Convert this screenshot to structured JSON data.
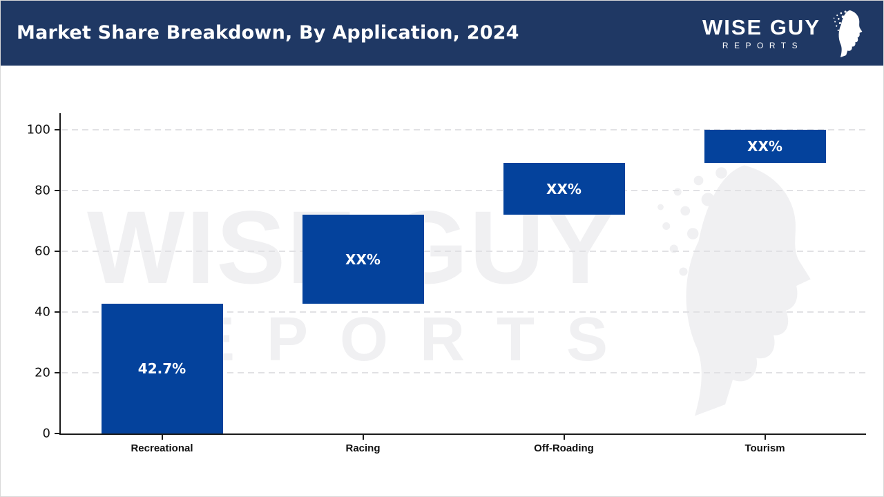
{
  "header": {
    "title": "Market Share Breakdown, By Application, 2024",
    "brand": {
      "name": "WISE GUY",
      "subtitle": "REPORTS"
    }
  },
  "watermark": {
    "line1": "WISE GUY",
    "line2": "REPORTS"
  },
  "colors": {
    "header_bg": "#1f3864",
    "title": "#ffffff",
    "page_bg": "#ffffff",
    "border": "#d9d9d9",
    "bar": "#04429c",
    "bar_label": "#ffffff",
    "grid": "#e1e1e4",
    "axis": "#1a1a1a",
    "tick_label": "#111111",
    "watermark": "#f0f0f2"
  },
  "chart_data": {
    "type": "bar",
    "variant": "waterfall",
    "title": "Market Share Breakdown, By Application, 2024",
    "categories": [
      "Recreational",
      "Racing",
      "Off-Roading",
      "Tourism"
    ],
    "segments": [
      {
        "category": "Recreational",
        "start": 0,
        "end": 42.7,
        "value": 42.7,
        "label": "42.7%"
      },
      {
        "category": "Racing",
        "start": 42.7,
        "end": 72,
        "value": 29.3,
        "label": "XX%"
      },
      {
        "category": "Off-Roading",
        "start": 72,
        "end": 89,
        "value": 17,
        "label": "XX%"
      },
      {
        "category": "Tourism",
        "start": 89,
        "end": 100,
        "value": 11,
        "label": "XX%"
      }
    ],
    "xlabel": "",
    "ylabel": "",
    "ylim": [
      0,
      100
    ],
    "yticks": [
      0,
      20,
      40,
      60,
      80,
      100
    ],
    "grid": "horizontal-dashed",
    "legend": "none"
  }
}
